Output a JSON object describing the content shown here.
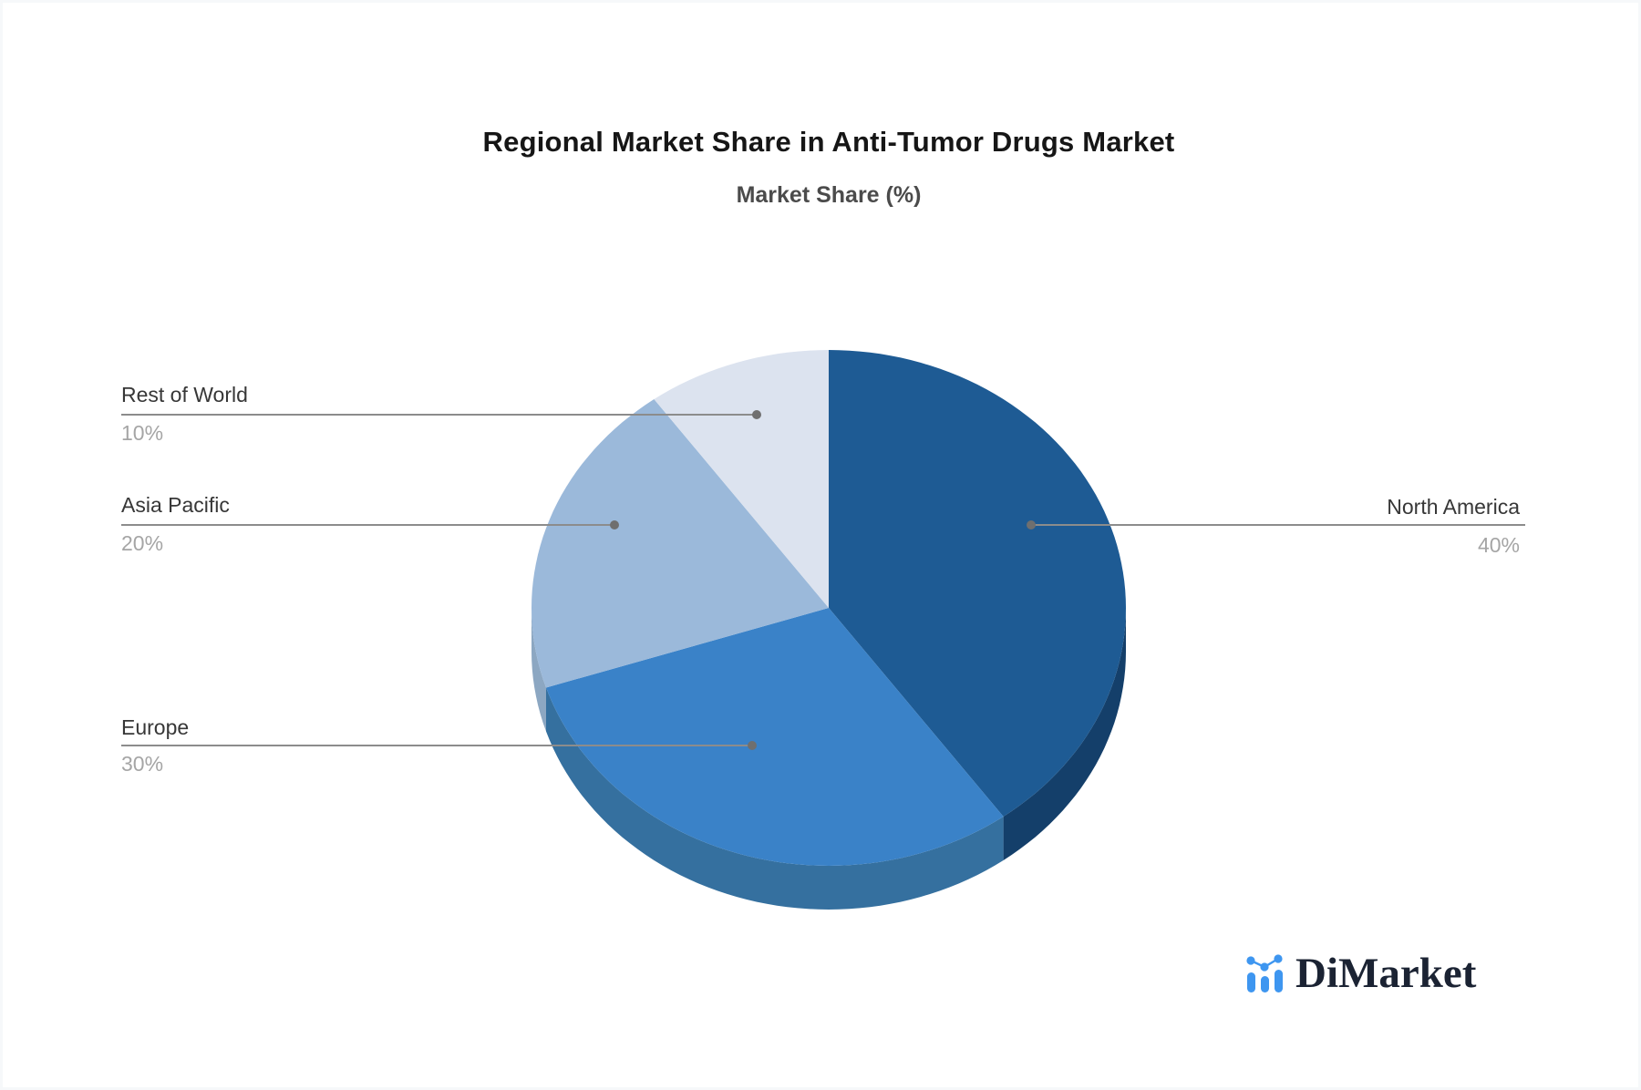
{
  "chart_data": {
    "type": "pie",
    "title": "Regional Market Share in Anti-Tumor Drugs Market",
    "subtitle": "Market Share (%)",
    "unit": "%",
    "labels": [
      "North America",
      "Europe",
      "Asia Pacific",
      "Rest of World"
    ],
    "values": [
      40,
      30,
      20,
      10
    ],
    "display_values": [
      "40%",
      "30%",
      "20%",
      "10%"
    ],
    "colors": [
      "#1E5B94",
      "#3A82C8",
      "#9BB9DA",
      "#DCE3EF"
    ],
    "side_colors": [
      "#143F6A",
      "#35709F",
      "#8CA7C2",
      "#C9D3E2"
    ],
    "start_angle_deg": -90,
    "direction": "clockwise",
    "style": "3d",
    "legend_position": "none",
    "label_style": "callout-lines",
    "callout_line_color": "#8c8c8c",
    "callout_dot_color": "#6f6f6f",
    "title_color": "#161616",
    "subtitle_color": "#4b4b4b",
    "label_text_color": "#373737",
    "value_text_color": "#a5a5a5"
  },
  "branding": {
    "logo_text": "DiMarket",
    "logo_icon": "bar-line-chart-icon",
    "logo_icon_color": "#3E96F0",
    "logo_text_color": "#1b2333"
  }
}
